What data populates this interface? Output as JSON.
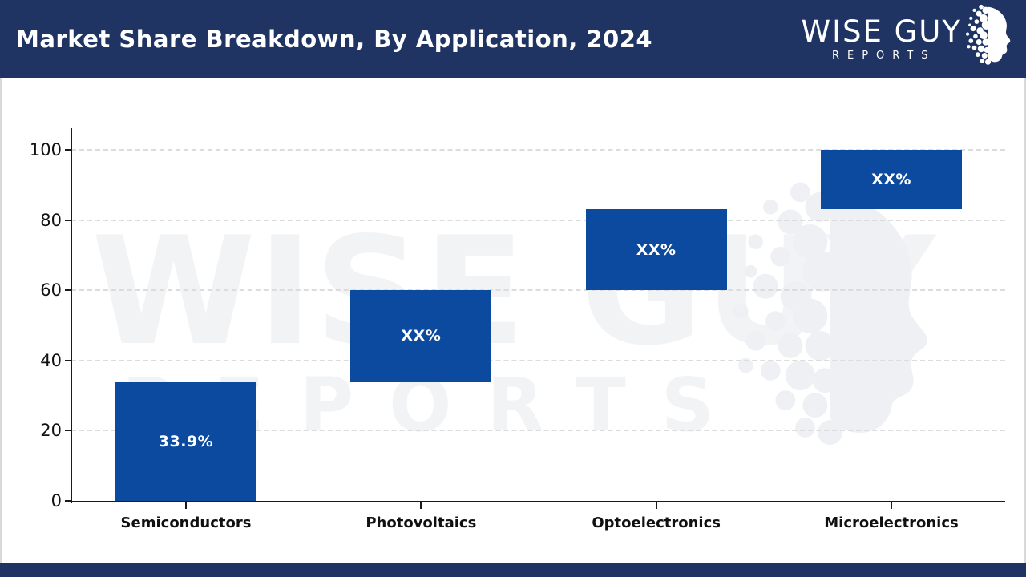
{
  "header": {
    "title": "Market Share Breakdown, By Application, 2024",
    "bg_color": "#1f3462",
    "logo": {
      "line1": "WISE GUY",
      "line2": "REPORTS"
    }
  },
  "watermark": {
    "line1": "WISE GUY",
    "line2": "REPORTS"
  },
  "footer": {
    "bg_color": "#1f3462"
  },
  "chart_data": {
    "type": "bar",
    "subtype": "waterfall",
    "title": "Market Share Breakdown, By Application, 2024",
    "categories": [
      "Semiconductors",
      "Photovoltaics",
      "Optoelectronics",
      "Microelectronics"
    ],
    "segments": [
      {
        "category": "Semiconductors",
        "start": 0,
        "end": 33.9,
        "label": "33.9%"
      },
      {
        "category": "Photovoltaics",
        "start": 33.9,
        "end": 60,
        "label": "XX%"
      },
      {
        "category": "Optoelectronics",
        "start": 60,
        "end": 83,
        "label": "XX%"
      },
      {
        "category": "Microelectronics",
        "start": 83,
        "end": 100,
        "label": "XX%"
      }
    ],
    "yticks": [
      0,
      20,
      40,
      60,
      80,
      100
    ],
    "ylim": [
      0,
      106
    ],
    "xlabel": "",
    "ylabel": "",
    "bar_color": "#0b4a9e",
    "grid": "horizontal-dashed",
    "legend": "none"
  }
}
